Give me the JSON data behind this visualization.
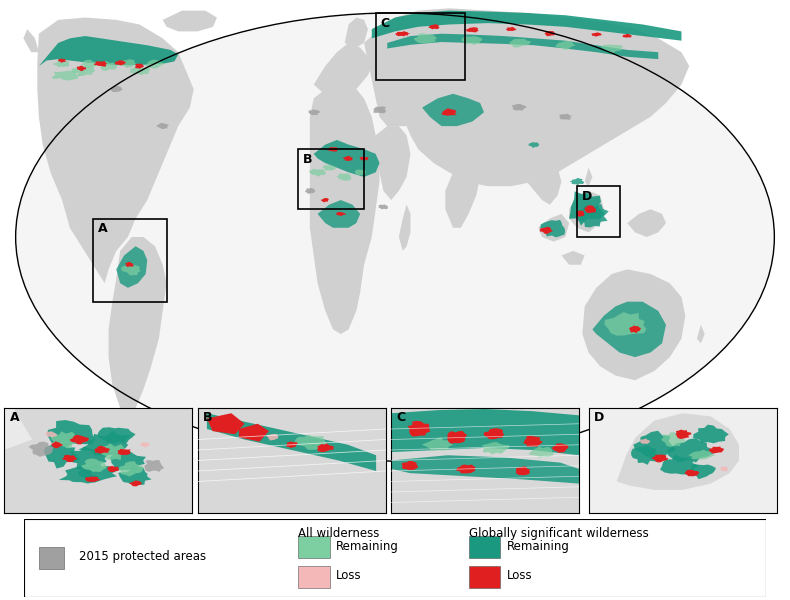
{
  "figure_bg": "#ffffff",
  "ocean_color": "#ffffff",
  "land_color": "#d0d0d0",
  "colors": {
    "protected_areas": "#a0a0a0",
    "all_wilderness_remaining": "#7dcea0",
    "all_wilderness_loss": "#f4b8b8",
    "global_wilderness_remaining": "#1a9980",
    "global_wilderness_loss": "#e02020"
  },
  "legend": {
    "protected_label": "2015 protected areas",
    "all_wilderness_title": "All wilderness",
    "all_remaining_label": "Remaining",
    "all_loss_label": "Loss",
    "global_wilderness_title": "Globally significant wilderness",
    "global_remaining_label": "Remaining",
    "global_loss_label": "Loss"
  },
  "inset_labels": [
    "A",
    "B",
    "C",
    "D"
  ]
}
